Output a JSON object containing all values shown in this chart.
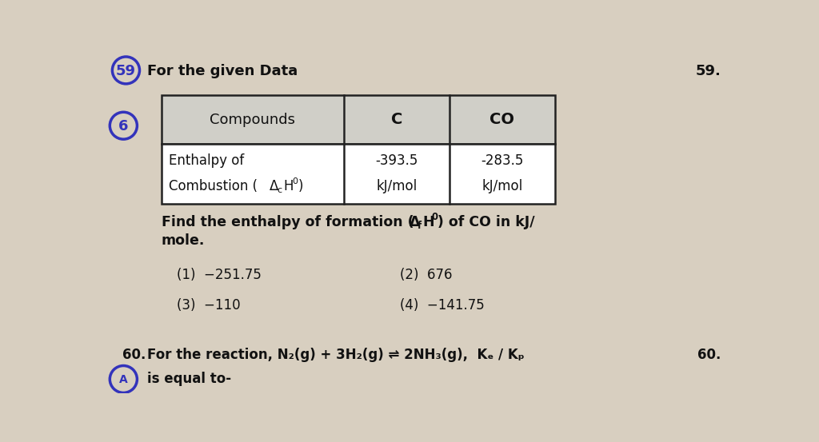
{
  "title_question": "For the given Data",
  "question_number": "59",
  "circle_label": "6",
  "col_headers": [
    "Compounds",
    "C",
    "CO"
  ],
  "row1_label_line1": "Enthalpy of",
  "row1_label_line2": "Combustion (Δ",
  "row1_label_sub": "c",
  "row1_label_rest": "H",
  "row1_label_sup": "0",
  "row1_label_end": ")",
  "val_c_line1": "-393.5",
  "val_c_line2": "kJ/mol",
  "val_co_line1": "-283.5",
  "val_co_line2": "kJ/mol",
  "find_line1_pre": "Find the enthalpy of formation (",
  "find_delta": "Δ",
  "find_sub": "f",
  "find_H": "H",
  "find_sup": "0",
  "find_line1_post": ") of CO in kJ/",
  "find_line2": "mole.",
  "opt1": "(1)  −251.75",
  "opt2": "(2)  676",
  "opt3": "(3)  −110",
  "opt4": "(4)  −141.75",
  "q59_right": "59.",
  "bg_color": "#d8cfc0",
  "table_header_bg": "#d0cfc8",
  "table_data_bg": "#ffffff",
  "border_color": "#222222",
  "text_color": "#111111",
  "circle_color": "#3333bb"
}
